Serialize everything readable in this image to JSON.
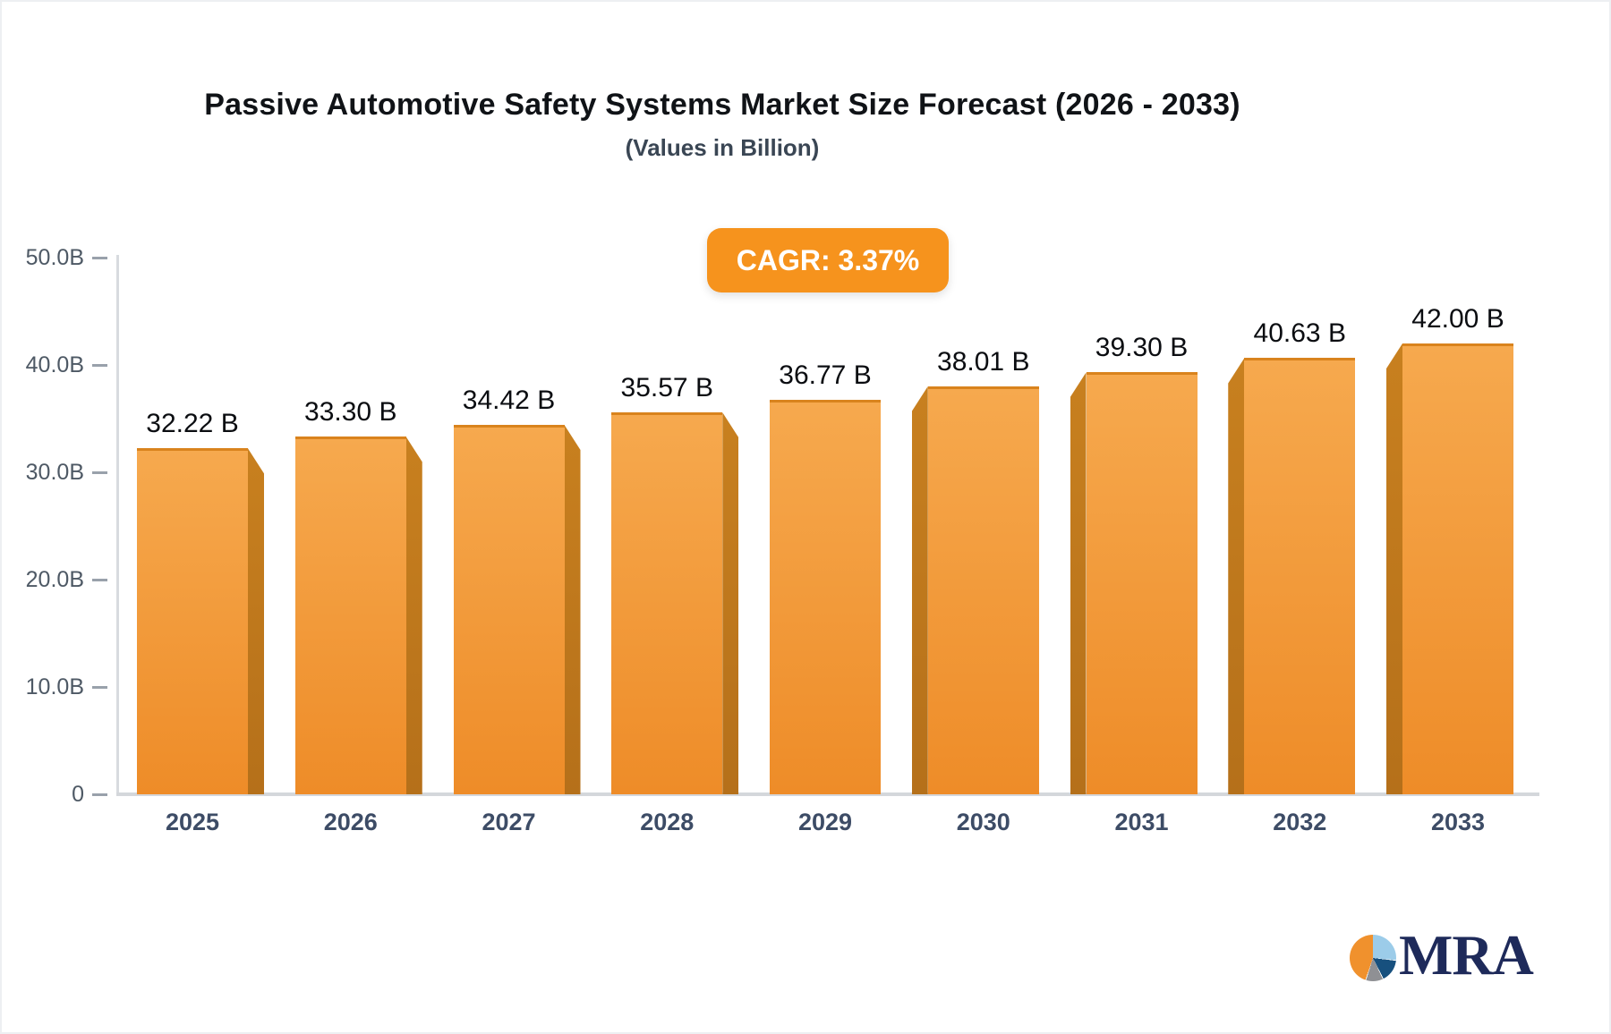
{
  "header": {
    "title": "Passive Automotive Safety Systems Market Size Forecast (2026 - 2033)",
    "subtitle": "(Values in Billion)"
  },
  "badge": {
    "label": "CAGR: 3.37%",
    "bg_color": "#F6931D",
    "text_color": "#FFFFFF"
  },
  "chart_data": {
    "type": "bar",
    "title": "Passive Automotive Safety Systems Market Size Forecast (2026 - 2033)",
    "subtitle": "(Values in Billion)",
    "cagr_label": "CAGR: 3.37%",
    "unit": "B",
    "categories": [
      "2025",
      "2026",
      "2027",
      "2028",
      "2029",
      "2030",
      "2031",
      "2032",
      "2033"
    ],
    "values": [
      32.22,
      33.3,
      34.42,
      35.57,
      36.77,
      38.01,
      39.3,
      40.63,
      42.0
    ],
    "value_labels": [
      "32.22 B",
      "33.30 B",
      "34.42 B",
      "35.57 B",
      "36.77 B",
      "38.01 B",
      "39.30 B",
      "40.63 B",
      "42.00 B"
    ],
    "ylim": [
      0,
      50
    ],
    "yticks": [
      {
        "label": "50.0B",
        "value": 50
      },
      {
        "label": "40.0B",
        "value": 40
      },
      {
        "label": "30.0B",
        "value": 30
      },
      {
        "label": "20.0B",
        "value": 20
      },
      {
        "label": "10.0B",
        "value": 10
      },
      {
        "label": "0",
        "value": 0
      }
    ],
    "grid": false,
    "legend": false,
    "bar_style": {
      "face_top": "#F6A94E",
      "face_bottom": "#EE8C28",
      "side_top": "#C8801F",
      "side_bottom": "#B5701A",
      "edge": "#D9831D"
    }
  },
  "logo": {
    "text": "MRA",
    "text_color": "#1E2A5A",
    "pie_colors": {
      "orange": "#F0912D",
      "light_blue": "#9CCCE9",
      "navy": "#17507E",
      "gray": "#8F9094"
    }
  }
}
